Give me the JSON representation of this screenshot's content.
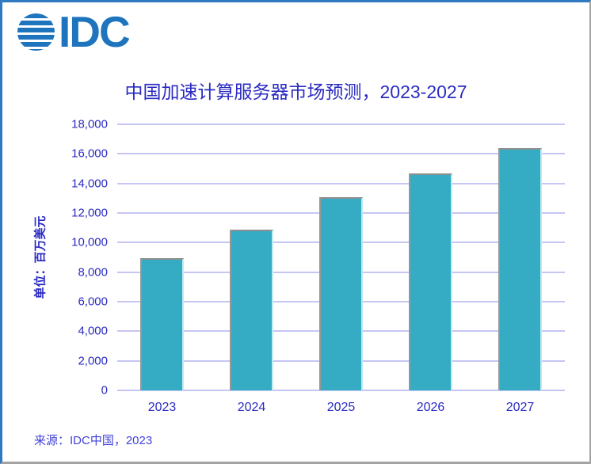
{
  "page": {
    "background": "#FFFFFF",
    "frame_color_top_left": "#2E79C2",
    "frame_color_bottom_right": "#A3A3A3"
  },
  "logo": {
    "text": "IDC",
    "color": "#1F74BE",
    "icon": "globe-stripes-icon"
  },
  "chart_data": {
    "type": "bar",
    "title": "中国加速计算服务器市场预测，2023-2027",
    "categories": [
      "2023",
      "2024",
      "2025",
      "2026",
      "2027"
    ],
    "values": [
      8950,
      10900,
      13050,
      14700,
      16400
    ],
    "xlabel": "",
    "ylabel": "单位：百万美元",
    "ylim": [
      0,
      18000
    ],
    "ytick_step": 2000,
    "ytick_labels": [
      "0",
      "2,000",
      "4,000",
      "6,000",
      "8,000",
      "10,000",
      "12,000",
      "14,000",
      "16,000",
      "18,000"
    ],
    "grid": true,
    "legend_position": "none",
    "bar_color": "#35ACC4",
    "gridline_color": "#C6C6F4",
    "label_color": "#2B2BC2",
    "title_color": "#2B2BC2"
  },
  "source": {
    "text": "来源：IDC中国，2023",
    "color": "#4343D8"
  }
}
